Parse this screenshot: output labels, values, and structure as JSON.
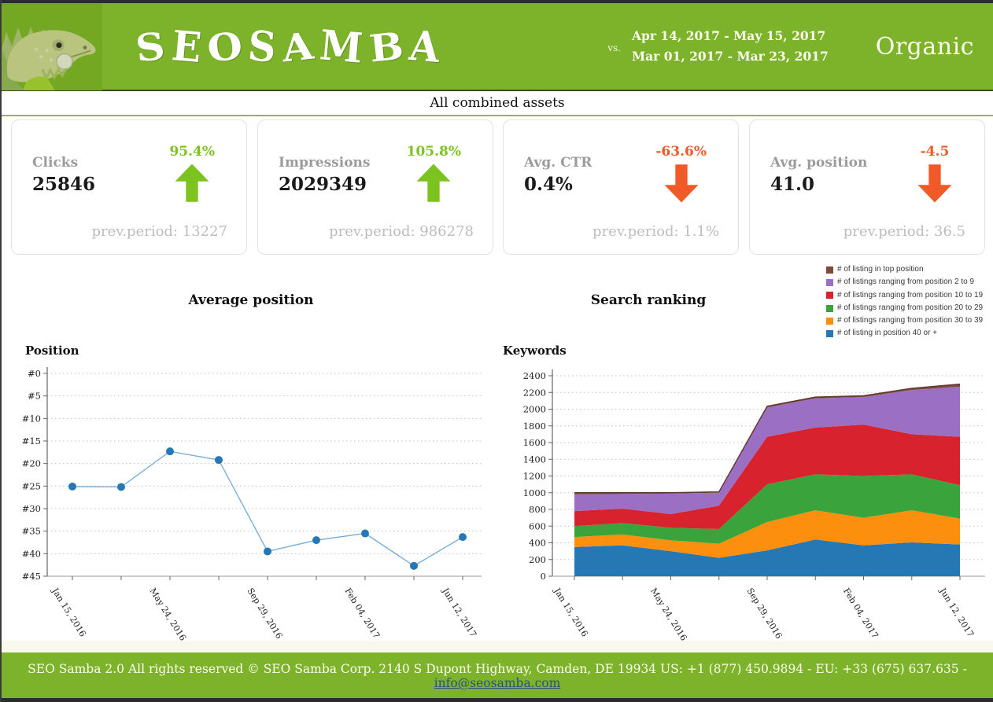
{
  "header": {
    "logo_text": "SEOSAMBA",
    "vs_label": "vs.",
    "period_current": "Apr 14, 2017 - May 15, 2017",
    "period_previous": "Mar 01, 2017 - Mar 23, 2017",
    "channel": "Organic"
  },
  "title_bar": {
    "text": "All combined assets"
  },
  "kpis": [
    {
      "label": "Clicks",
      "value": "25846",
      "change": "95.4%",
      "direction": "up",
      "prev": "prev.period: 13227"
    },
    {
      "label": "Impressions",
      "value": "2029349",
      "change": "105.8%",
      "direction": "up",
      "prev": "prev.period: 986278"
    },
    {
      "label": "Avg. CTR",
      "value": "0.4%",
      "change": "-63.6%",
      "direction": "down",
      "prev": "prev.period: 1.1%"
    },
    {
      "label": "Avg. position",
      "value": "41.0",
      "change": "-4.5",
      "direction": "down",
      "prev": "prev.period: 36.5"
    }
  ],
  "colors": {
    "header_green": "#7db32b",
    "up": "#7cc31f",
    "down": "#f05a28",
    "line": "#7aaed6",
    "marker": "#2678b4"
  },
  "chart_data": [
    {
      "type": "line",
      "title": "Average position",
      "ylabel": "Position",
      "y_inverted": true,
      "ylim": [
        0,
        45
      ],
      "y_tick_labels": [
        "#0",
        "#5",
        "#10",
        "#15",
        "#20",
        "#25",
        "#30",
        "#35",
        "#40",
        "#45"
      ],
      "x_labels": [
        "Jan 15, 2016",
        "",
        "May 24, 2016",
        "",
        "Sep 29, 2016",
        "",
        "Feb 04, 2017",
        "",
        "Jun 12, 2017"
      ],
      "values": [
        25.1,
        25.2,
        17.3,
        19.2,
        39.5,
        37.0,
        35.5,
        42.7,
        36.3
      ],
      "grid": true,
      "legend_position": "none"
    },
    {
      "type": "area",
      "title": "Search ranking",
      "ylabel": "Keywords",
      "ylim": [
        0,
        2400
      ],
      "y_step": 200,
      "x_labels": [
        "Jan 15, 2016",
        "",
        "May 24, 2016",
        "",
        "Sep 29, 2016",
        "",
        "Feb 04, 2017",
        "",
        "Jun 12, 2017"
      ],
      "series": [
        {
          "name": "# of listing in position 40 or +",
          "color": "#2678b4",
          "values": [
            350,
            370,
            300,
            220,
            310,
            440,
            370,
            405,
            380
          ]
        },
        {
          "name": "# of listings ranging from position 30 to 39",
          "color": "#fd8f0e",
          "values": [
            120,
            130,
            130,
            170,
            340,
            350,
            330,
            385,
            310
          ]
        },
        {
          "name": "# of listings ranging from position 20 to 29",
          "color": "#3ba33b",
          "values": [
            130,
            135,
            150,
            175,
            450,
            430,
            500,
            430,
            400
          ]
        },
        {
          "name": "# of listings ranging from position 10 to 19",
          "color": "#d8232e",
          "values": [
            180,
            175,
            165,
            280,
            570,
            560,
            615,
            480,
            580
          ]
        },
        {
          "name": "# of listings ranging from position 2 to 9",
          "color": "#9b6fc3",
          "values": [
            200,
            175,
            245,
            155,
            350,
            350,
            330,
            530,
            600
          ]
        },
        {
          "name": "# of listing in top position",
          "color": "#7e4a3f",
          "values": [
            20,
            15,
            10,
            10,
            15,
            15,
            15,
            20,
            30
          ]
        }
      ],
      "grid": true,
      "legend_position": "top-right"
    }
  ],
  "footer": {
    "line1": "SEO Samba 2.0  All rights reserved © SEO Samba Corp. 2140 S Dupont Highway, Camden, DE 19934 US: +1 (877) 450.9894 - EU: +33 (675) 637.635 -",
    "link_text": "info@seosamba.com"
  }
}
